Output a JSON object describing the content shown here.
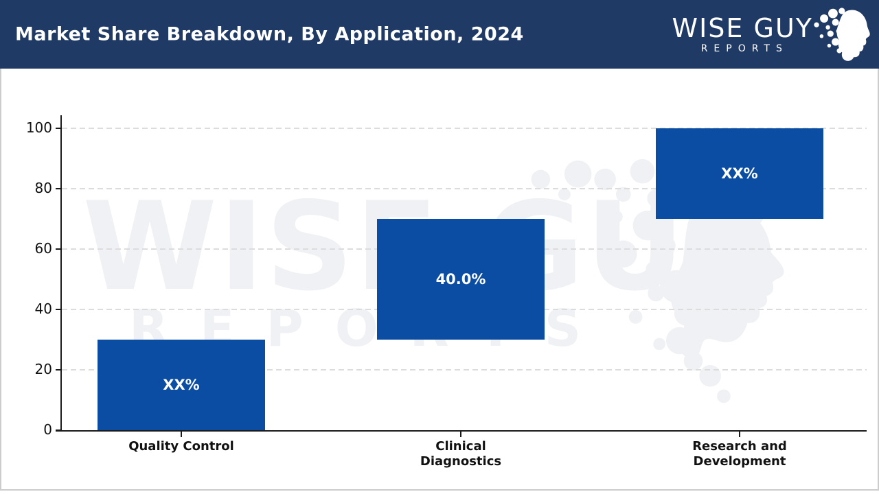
{
  "header": {
    "title": "Market Share Breakdown, By Application, 2024",
    "logo": {
      "line1": "WISE GUY",
      "line2": "REPORTS"
    }
  },
  "watermark": {
    "line1": "WISE GUY",
    "line2": "REPORTS"
  },
  "chart_data": {
    "type": "bar",
    "subtype": "floating-stacked-breakdown",
    "title": "Market Share Breakdown, By Application, 2024",
    "categories": [
      {
        "lines": [
          "Quality Control"
        ]
      },
      {
        "lines": [
          "Clinical",
          "Diagnostics"
        ]
      },
      {
        "lines": [
          "Research and",
          "Development"
        ]
      }
    ],
    "segments": [
      {
        "category": "Quality Control",
        "start": 0,
        "end": 30,
        "label": "XX%"
      },
      {
        "category": "Clinical Diagnostics",
        "start": 30,
        "end": 70,
        "label": "40.0%"
      },
      {
        "category": "Research and Development",
        "start": 70,
        "end": 100,
        "label": "XX%"
      }
    ],
    "ylim": [
      0,
      100
    ],
    "yticks": [
      0,
      20,
      40,
      60,
      80,
      100
    ],
    "xlabel": "",
    "ylabel": "",
    "grid": "horizontal-dashed",
    "legend": "none",
    "bar_color": "#0b4da2",
    "bar_label_color": "#ffffff",
    "axis_color": "#1a1a1a",
    "grid_color": "#dcdcdc",
    "header_color": "#203a66"
  }
}
